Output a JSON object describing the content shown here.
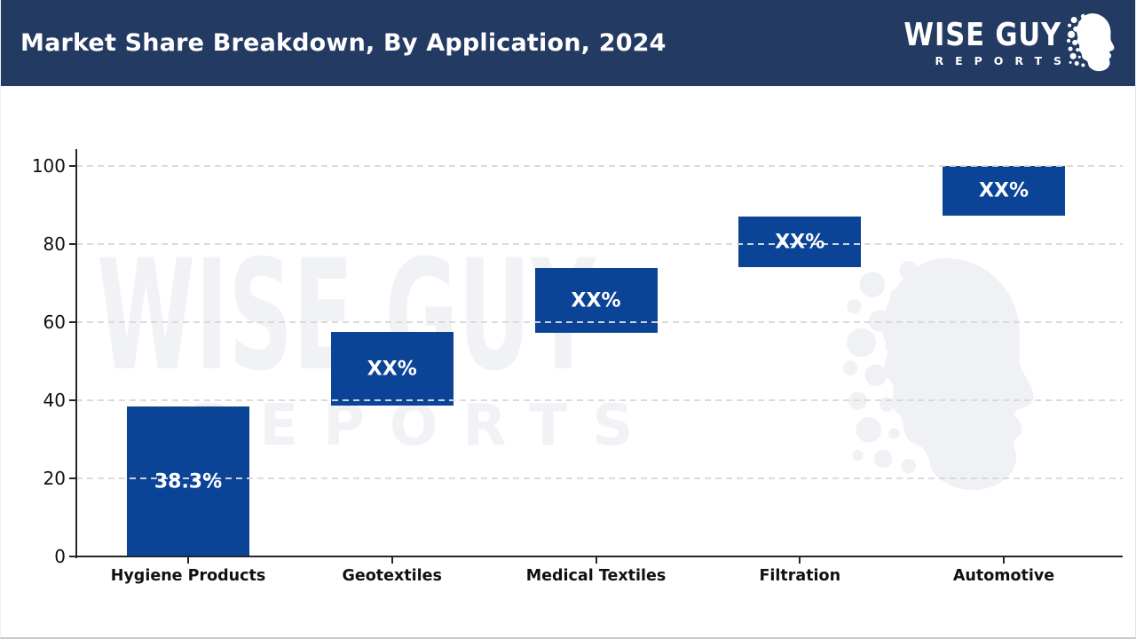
{
  "header": {
    "title": "Market Share Breakdown, By Application, 2024",
    "logo_line1": "WISE GUY",
    "logo_line2": "REPORTS"
  },
  "watermark": {
    "line1": "WISE GUY",
    "line2": "REPORTS"
  },
  "chart_data": {
    "type": "bar",
    "subtype": "waterfall",
    "title": "Market Share Breakdown, By Application, 2024",
    "categories": [
      "Hygiene Products",
      "Geotextiles",
      "Medical Textiles",
      "Filtration",
      "Automotive"
    ],
    "segments": [
      {
        "category": "Hygiene Products",
        "start": 0,
        "end": 38.3,
        "label": "38.3%"
      },
      {
        "category": "Geotextiles",
        "start": 38.6,
        "end": 57.4,
        "label": "XX%"
      },
      {
        "category": "Medical Textiles",
        "start": 57.3,
        "end": 73.8,
        "label": "XX%"
      },
      {
        "category": "Filtration",
        "start": 74.1,
        "end": 87.0,
        "label": "XX%"
      },
      {
        "category": "Automotive",
        "start": 87.2,
        "end": 100.0,
        "label": "XX%"
      }
    ],
    "xlabel": "",
    "ylabel": "",
    "yticks": [
      0,
      20,
      40,
      60,
      80,
      100
    ],
    "ylim": [
      0,
      104
    ],
    "grid": "horizontal-dashed",
    "legend": null
  },
  "colors": {
    "header_bg": "#233a63",
    "header_text": "#ffffff",
    "bar": "#0b4397",
    "bar_label": "#ffffff",
    "axis": "#262626",
    "tick_label": "#111111",
    "gridline": "#d9d9d9",
    "watermark": "#f1f2f5",
    "page_bg": "#ffffff"
  }
}
